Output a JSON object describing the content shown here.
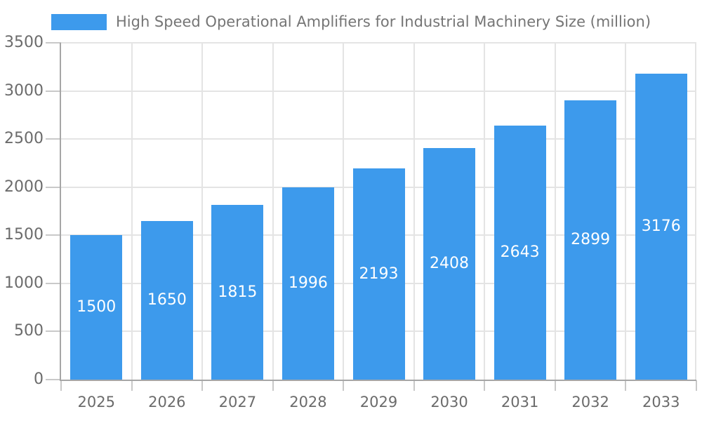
{
  "chart_data": {
    "type": "bar",
    "title": "High Speed Operational Amplifiers for Industrial Machinery Size (million)",
    "categories": [
      "2025",
      "2026",
      "2027",
      "2028",
      "2029",
      "2030",
      "2031",
      "2032",
      "2033"
    ],
    "values": [
      1500,
      1650,
      1815,
      1996,
      2193,
      2408,
      2643,
      2899,
      3176
    ],
    "series_name": "High Speed Operational Amplifiers for Industrial Machinery Size (million)",
    "xlabel": "",
    "ylabel": "",
    "ylim": [
      0,
      3500
    ],
    "ytick_step": 500,
    "yticks": [
      0,
      500,
      1000,
      1500,
      2000,
      2500,
      3000,
      3500
    ],
    "grid": true,
    "legend_position": "top-center",
    "bar_label_position": "inside-center",
    "colors": {
      "bar": "#3D9AEC",
      "bar_label_text": "#FFFFFF",
      "grid_line": "#E4E4E4",
      "axis_line": "#A6A6A6",
      "tick_mark": "#C9C9C9",
      "axis_label_text": "#6B6B6B",
      "legend_text": "#757575",
      "background": "#FFFFFF"
    }
  }
}
